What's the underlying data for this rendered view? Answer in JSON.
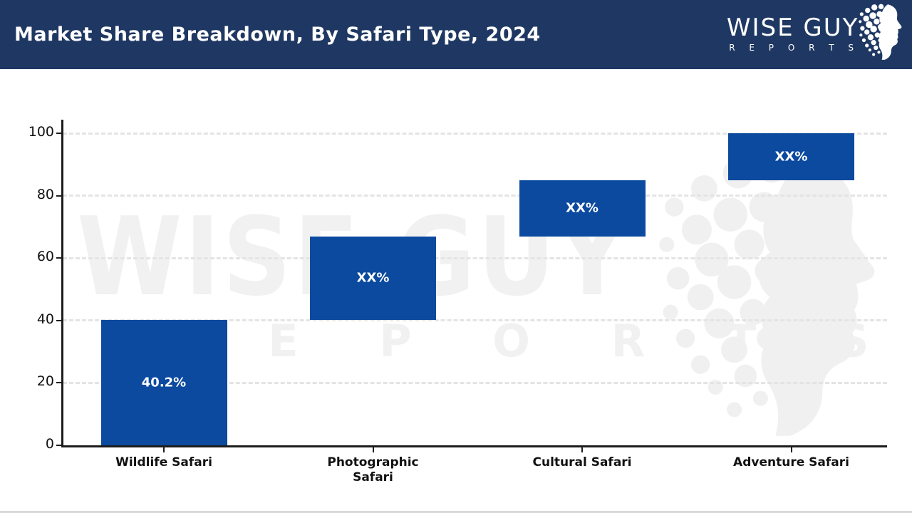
{
  "header": {
    "title": "Market Share Breakdown, By Safari Type, 2024",
    "bg_color": "#1F3863",
    "logo": {
      "line1": "WISE GUY",
      "line2": "R E P O R T S"
    }
  },
  "watermark": {
    "line1": "WISE GUY",
    "line2": "R E P O R T S"
  },
  "chart_data": {
    "type": "bar",
    "subtype": "waterfall",
    "title": "Market Share Breakdown, By Safari Type, 2024",
    "categories": [
      "Wildlife Safari",
      "Photographic\nSafari",
      "Cultural Safari",
      "Adventure Safari"
    ],
    "segments": [
      {
        "category": "Wildlife Safari",
        "start": 0,
        "end": 40.2,
        "label": "40.2%"
      },
      {
        "category": "Photographic Safari",
        "start": 40.2,
        "end": 67,
        "label": "XX%"
      },
      {
        "category": "Cultural Safari",
        "start": 67,
        "end": 85,
        "label": "XX%"
      },
      {
        "category": "Adventure Safari",
        "start": 85,
        "end": 100,
        "label": "XX%"
      }
    ],
    "bar_color": "#0B4A9F",
    "value_label_color": "#ffffff",
    "ylim": [
      0,
      100
    ],
    "yticks": [
      0,
      20,
      40,
      60,
      80,
      100
    ],
    "grid": "horizontal-dashed",
    "gridline_color": "#e4e4e4",
    "legend": "none",
    "xlabel": "",
    "ylabel": ""
  }
}
